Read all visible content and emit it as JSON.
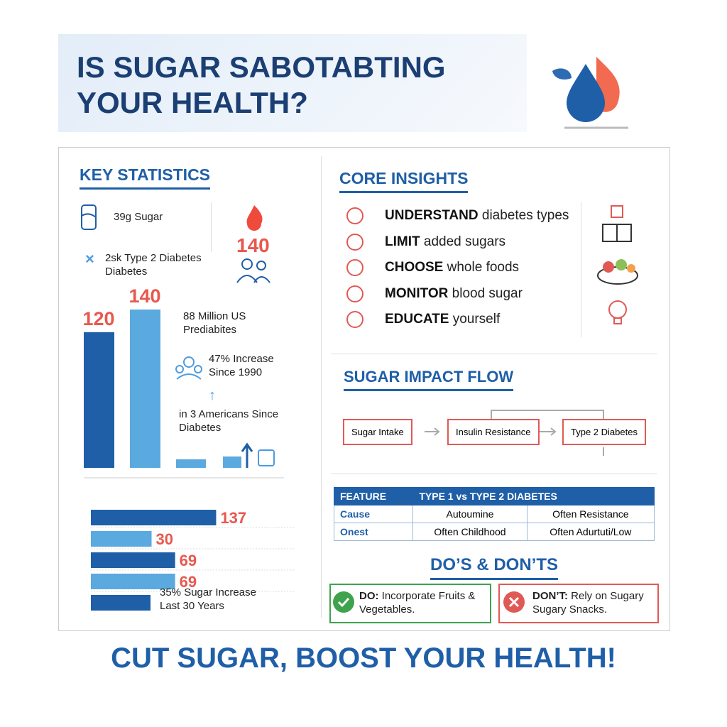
{
  "header": {
    "title": "IS SUGAR SABOTABTING YOUR HEALTH?"
  },
  "key_statistics": {
    "title": "KEY STATISTICS",
    "stats": [
      "39g Sugar",
      "2sk Type 2 Diabetes Diabetes"
    ],
    "highlight": 140,
    "vertical_bars": {
      "values": [
        120,
        140
      ]
    },
    "notes": [
      "88 Million US Prediabites",
      "47% Increase Since 1990",
      "in 3 Americans Since Diabetes"
    ],
    "horizontal_bars": {
      "values": [
        137,
        30,
        69,
        69
      ]
    },
    "bar_note": "35% Sugar Increase Last 30 Years"
  },
  "core_insights": {
    "title": "CORE INSIGHTS",
    "items": [
      {
        "keyword": "UNDERSTAND",
        "text": "diabetes types"
      },
      {
        "keyword": "LIMIT",
        "text": "added sugars"
      },
      {
        "keyword": "CHOOSE",
        "text": "whole foods"
      },
      {
        "keyword": "MONITOR",
        "text": "blood sugar"
      },
      {
        "keyword": "EDUCATE",
        "text": "yourself"
      }
    ]
  },
  "impact_flow": {
    "title": "SUGAR IMPACT FLOW",
    "nodes": [
      "Sugar Intake",
      "Insulin Resistance",
      "Type 2 Diabetes"
    ]
  },
  "table": {
    "header": [
      "FEATURE",
      "TYPE 1 vs TYPE 2 DIABETES"
    ],
    "rows": [
      [
        "Cause",
        "Autoumine",
        "Often Resistance"
      ],
      [
        "Onest",
        "Often Childhood",
        "Often Adurtuti/Low"
      ]
    ]
  },
  "dos_donts": {
    "title": "DO’S & DON’TS",
    "do": {
      "label": "DO:",
      "text": "Incorporate Fruits & Vegetables."
    },
    "dont": {
      "label": "DON’T:",
      "text": "Rely on Sugary Sugary Snacks."
    }
  },
  "footer": "CUT SUGAR, BOOST YOUR HEALTH!"
}
